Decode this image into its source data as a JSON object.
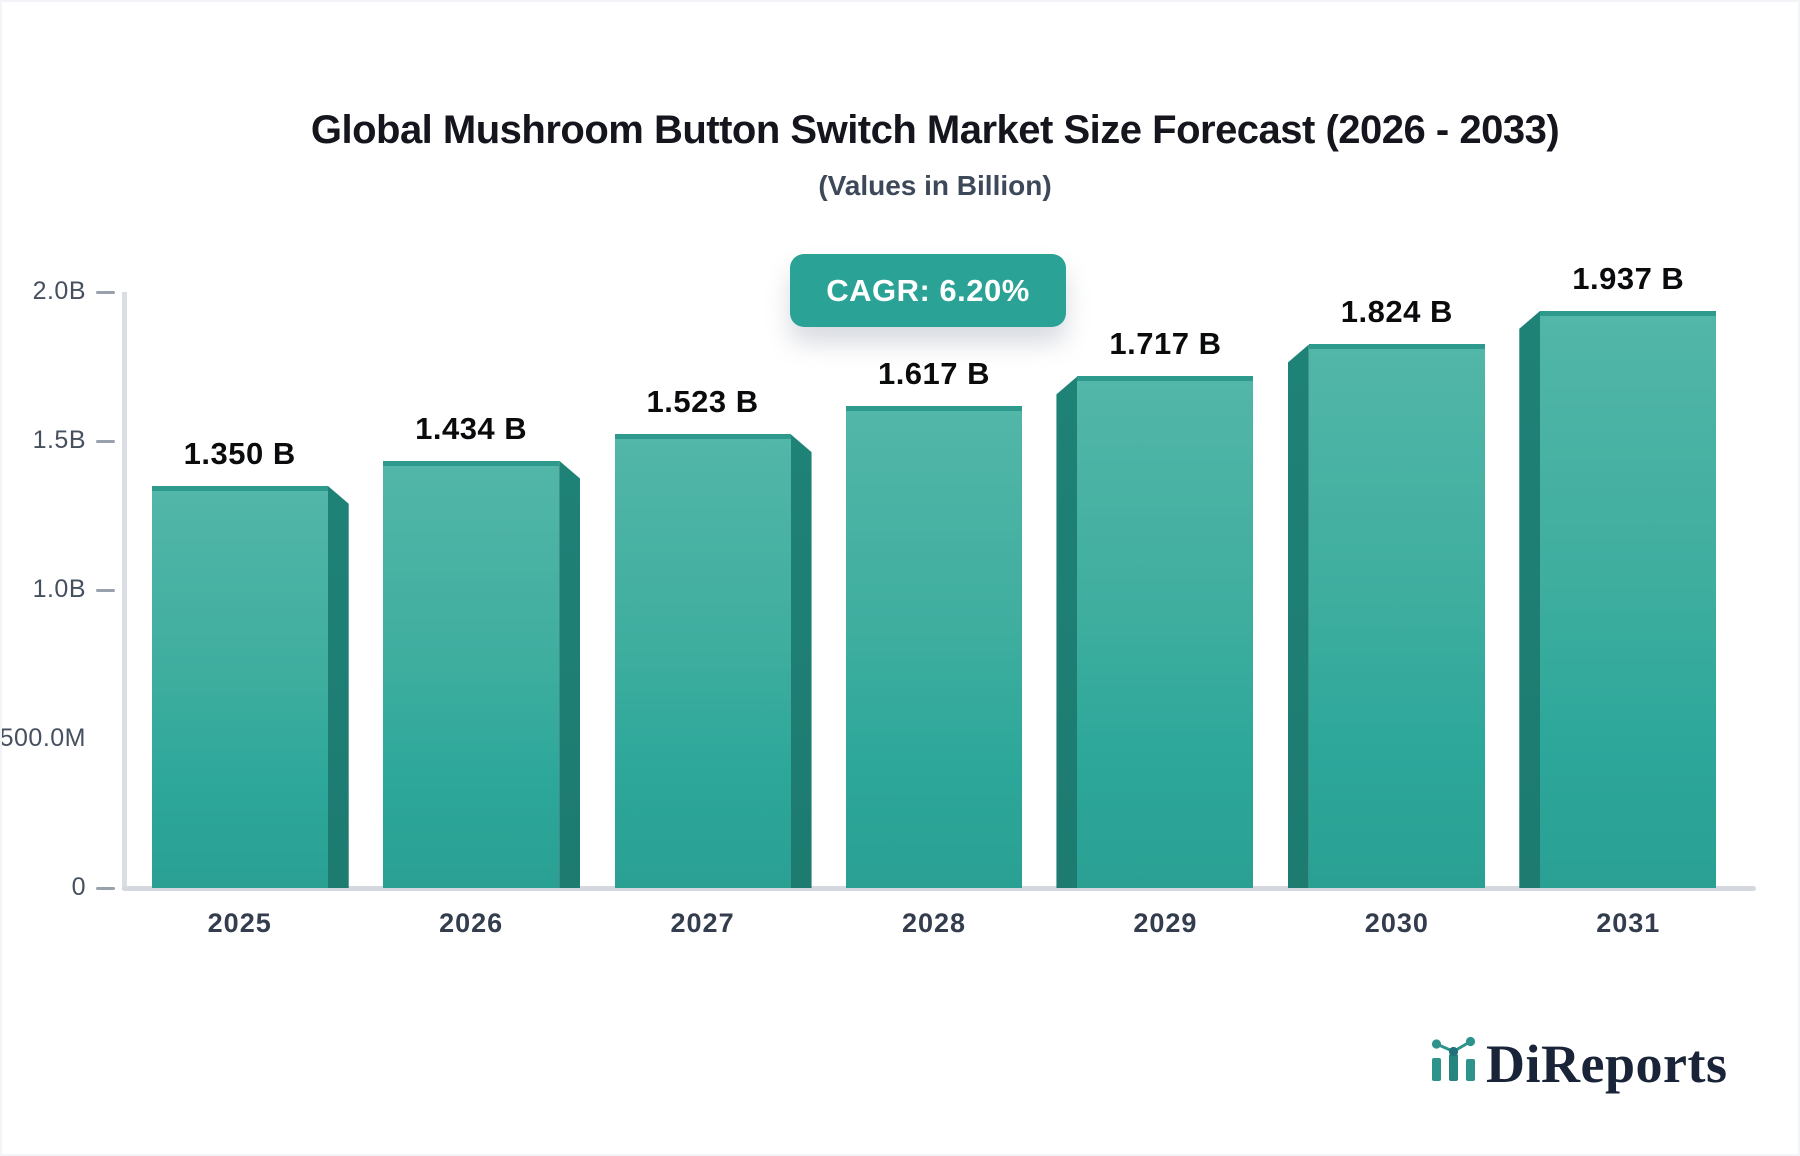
{
  "chart_data": {
    "type": "bar",
    "title": "Global Mushroom Button Switch Market Size Forecast (2026 - 2033)",
    "subtitle": "(Values in Billion)",
    "annotation": "CAGR: 6.20%",
    "categories": [
      "2025",
      "2026",
      "2027",
      "2028",
      "2029",
      "2030",
      "2031"
    ],
    "values": [
      1.35,
      1.434,
      1.523,
      1.617,
      1.717,
      1.824,
      1.937
    ],
    "value_labels": [
      "1.350 B",
      "1.434 B",
      "1.523 B",
      "1.617 B",
      "1.717 B",
      "1.824 B",
      "1.937 B"
    ],
    "unit": "Billion USD",
    "xlabel": "",
    "ylabel": "",
    "ylim": [
      0,
      2.0
    ],
    "yticks": [
      {
        "label": "2.0B",
        "value": 2.0,
        "dash": true
      },
      {
        "label": "1.5B",
        "value": 1.5,
        "dash": true
      },
      {
        "label": "1.0B",
        "value": 1.0,
        "dash": true
      },
      {
        "label": "500.0M",
        "value": 0.5,
        "dash": false
      },
      {
        "label": "0",
        "value": 0.0,
        "dash": true
      }
    ],
    "grid": false,
    "legend": null,
    "bar_color": "#2faa9c",
    "bar_side_color": "#1e7e73",
    "annotation_bg_color": "#2aa396"
  },
  "branding": {
    "logo_text": "DiReports",
    "logo_icon": "bar-chart-trend-icon",
    "logo_text_color": "#1a2438",
    "logo_icon_color": "#2d938b"
  }
}
